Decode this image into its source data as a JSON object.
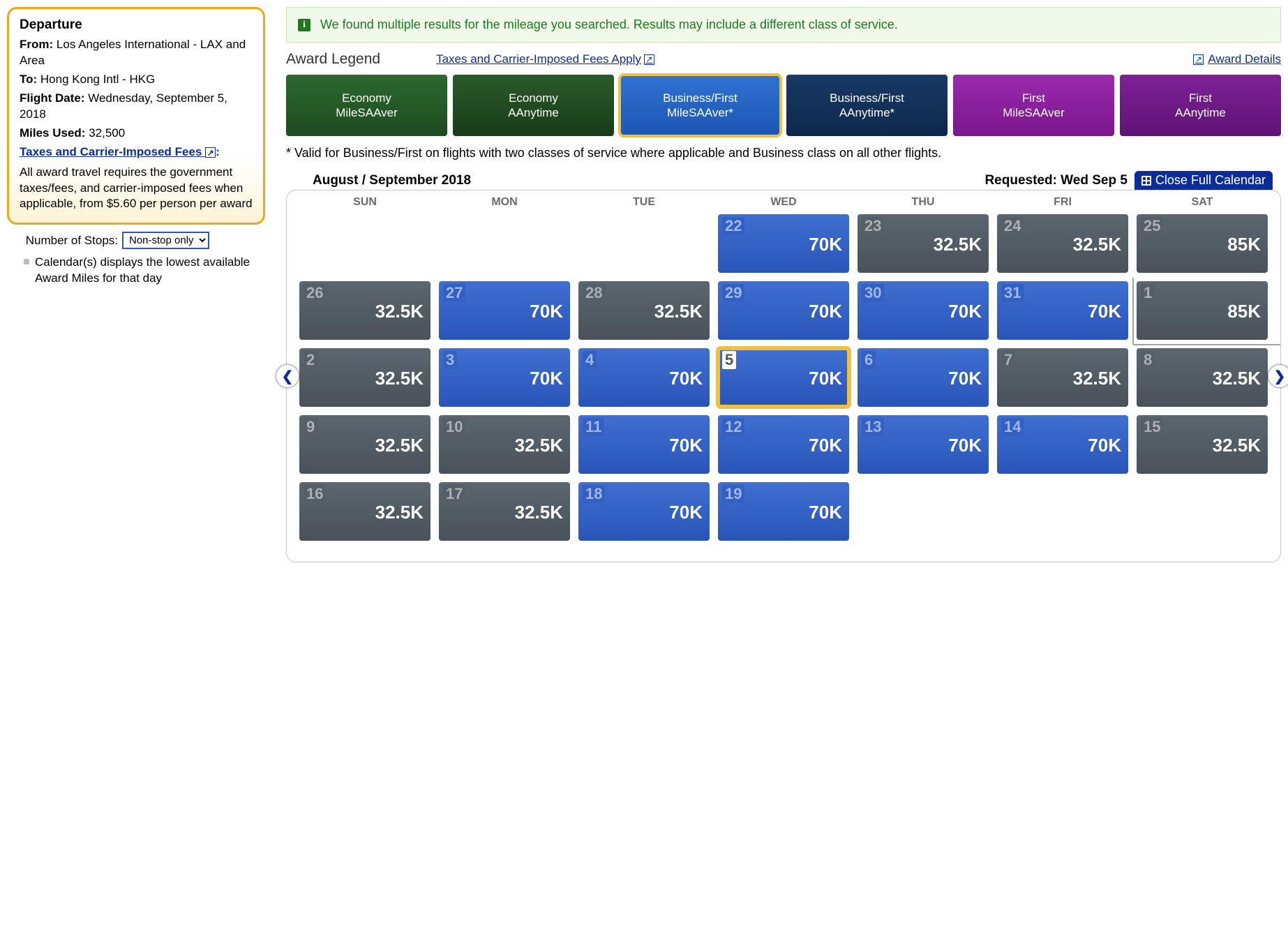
{
  "departure": {
    "heading": "Departure",
    "from_label": "From:",
    "from_value": "Los Angeles International - LAX and Area",
    "to_label": "To:",
    "to_value": "Hong Kong Intl - HKG",
    "date_label": "Flight Date:",
    "date_value": "Wednesday, September 5, 2018",
    "miles_label": "Miles Used:",
    "miles_value": "32,500",
    "fees_link": "Taxes and Carrier-Imposed Fees",
    "fees_colon": ":",
    "fees_note": "All award travel requires the government taxes/fees, and carrier-imposed fees when applicable, from $5.60 per person per award",
    "stops_label": "Number of Stops:",
    "stops_value": "Non-stop only",
    "calendar_note": "Calendar(s) displays the lowest available Award Miles for that day"
  },
  "banner": {
    "text": "We found multiple results for the mileage you searched. Results may include a different class of service."
  },
  "legend": {
    "title": "Award Legend",
    "taxes_link": "Taxes and Carrier-Imposed Fees Apply",
    "details_link": "Award Details",
    "footnote": "* Valid for Business/First on flights with two classes of service where applicable and Business class on all other flights."
  },
  "tabs": [
    {
      "line1": "Economy",
      "line2": "MileSAAver",
      "bg_from": "#2c6a2e",
      "bg_to": "#1e4a20",
      "selected": false
    },
    {
      "line1": "Economy",
      "line2": "AAnytime",
      "bg_from": "#2a5b2a",
      "bg_to": "#173c18",
      "selected": false
    },
    {
      "line1": "Business/First",
      "line2": "MileSAAver*",
      "bg_from": "#2f72d0",
      "bg_to": "#1d56b4",
      "selected": true
    },
    {
      "line1": "Business/First",
      "line2": "AAnytime*",
      "bg_from": "#183a66",
      "bg_to": "#0d284c",
      "selected": false
    },
    {
      "line1": "First",
      "line2": "MileSAAver",
      "bg_from": "#9a2aae",
      "bg_to": "#7a168c",
      "selected": false
    },
    {
      "line1": "First",
      "line2": "AAnytime",
      "bg_from": "#7e2296",
      "bg_to": "#5e1274",
      "selected": false
    }
  ],
  "calendar": {
    "title": "August / September 2018",
    "requested": "Requested: Wed Sep 5",
    "close_label": "Close Full Calendar",
    "days_of_week": [
      "SUN",
      "MON",
      "TUE",
      "WED",
      "THU",
      "FRI",
      "SAT"
    ],
    "month_break_row": 1,
    "month_break_col": 6,
    "colors": {
      "blue_from": "#3f6fd0",
      "blue_to": "#2a55b8",
      "gray_from": "#5b6670",
      "gray_to": "#49525a",
      "highlight": "#f0c040"
    },
    "cells": [
      [
        null,
        null,
        null,
        {
          "d": "22",
          "m": "70K",
          "c": "blue"
        },
        {
          "d": "23",
          "m": "32.5K",
          "c": "gray"
        },
        {
          "d": "24",
          "m": "32.5K",
          "c": "gray"
        },
        {
          "d": "25",
          "m": "85K",
          "c": "gray"
        }
      ],
      [
        {
          "d": "26",
          "m": "32.5K",
          "c": "gray"
        },
        {
          "d": "27",
          "m": "70K",
          "c": "blue"
        },
        {
          "d": "28",
          "m": "32.5K",
          "c": "gray"
        },
        {
          "d": "29",
          "m": "70K",
          "c": "blue"
        },
        {
          "d": "30",
          "m": "70K",
          "c": "blue"
        },
        {
          "d": "31",
          "m": "70K",
          "c": "blue"
        },
        {
          "d": "1",
          "m": "85K",
          "c": "gray"
        }
      ],
      [
        {
          "d": "2",
          "m": "32.5K",
          "c": "gray"
        },
        {
          "d": "3",
          "m": "70K",
          "c": "blue"
        },
        {
          "d": "4",
          "m": "70K",
          "c": "blue"
        },
        {
          "d": "5",
          "m": "70K",
          "c": "blue",
          "sel": true
        },
        {
          "d": "6",
          "m": "70K",
          "c": "blue"
        },
        {
          "d": "7",
          "m": "32.5K",
          "c": "gray"
        },
        {
          "d": "8",
          "m": "32.5K",
          "c": "gray"
        }
      ],
      [
        {
          "d": "9",
          "m": "32.5K",
          "c": "gray"
        },
        {
          "d": "10",
          "m": "32.5K",
          "c": "gray"
        },
        {
          "d": "11",
          "m": "70K",
          "c": "blue"
        },
        {
          "d": "12",
          "m": "70K",
          "c": "blue"
        },
        {
          "d": "13",
          "m": "70K",
          "c": "blue"
        },
        {
          "d": "14",
          "m": "70K",
          "c": "blue"
        },
        {
          "d": "15",
          "m": "32.5K",
          "c": "gray"
        }
      ],
      [
        {
          "d": "16",
          "m": "32.5K",
          "c": "gray"
        },
        {
          "d": "17",
          "m": "32.5K",
          "c": "gray"
        },
        {
          "d": "18",
          "m": "70K",
          "c": "blue"
        },
        {
          "d": "19",
          "m": "70K",
          "c": "blue"
        },
        null,
        null,
        null
      ]
    ]
  }
}
